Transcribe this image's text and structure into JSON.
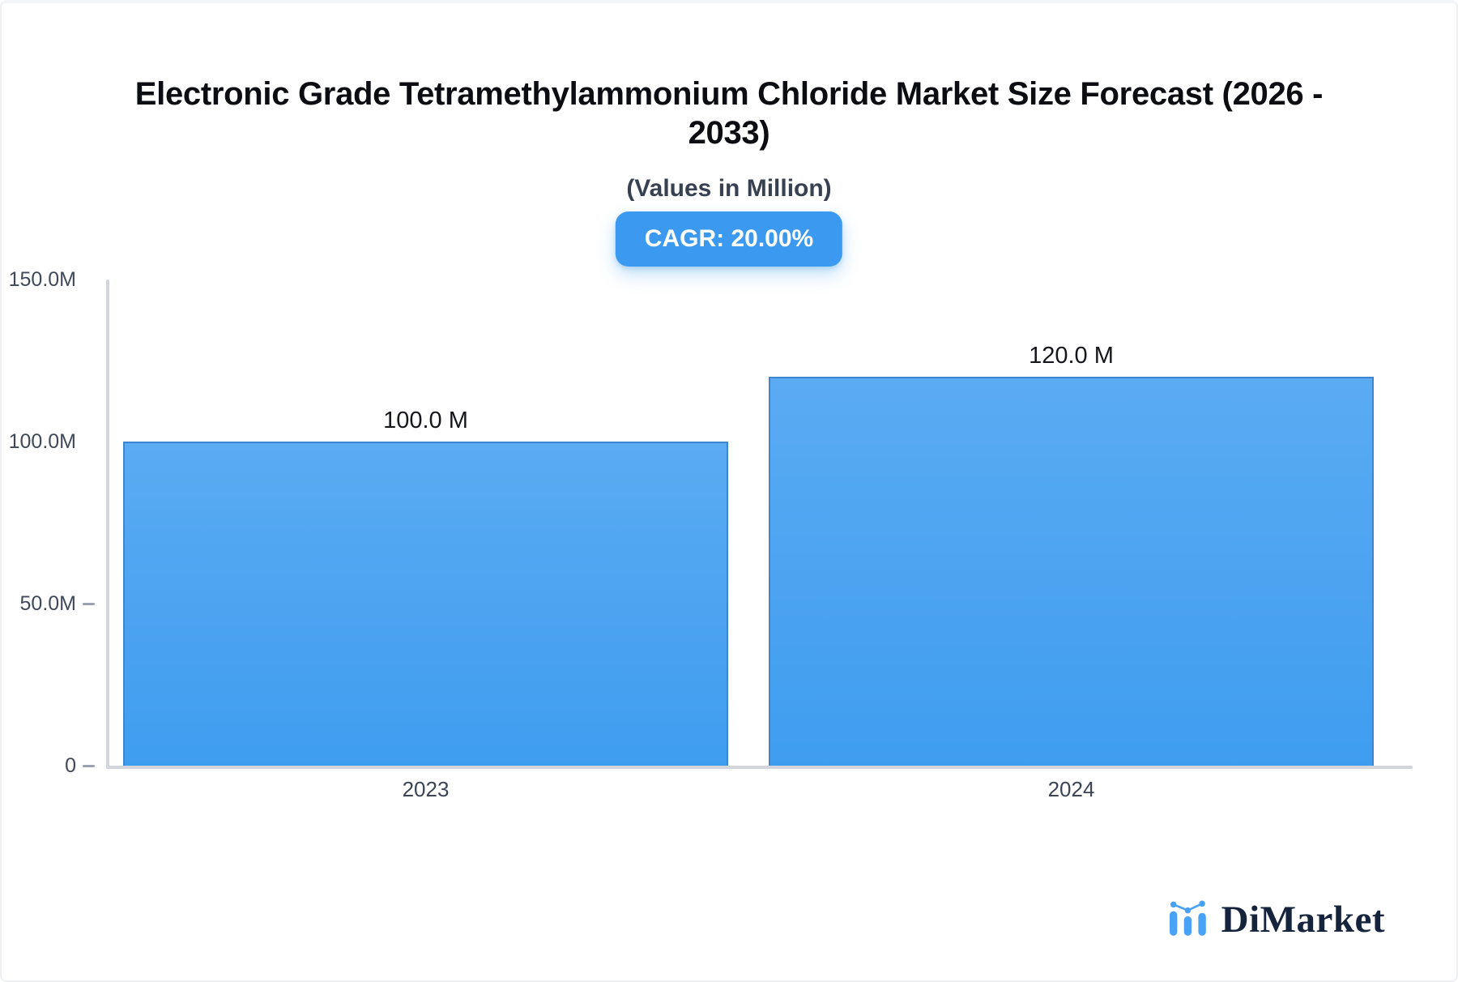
{
  "chart_data": {
    "type": "bar",
    "title": "Electronic Grade Tetramethylammonium Chloride Market Size Forecast (2026 - 2033)",
    "title_lines": [
      "Electronic Grade Tetramethylammonium Chloride Market Size Forecast (2026 -",
      "2033)"
    ],
    "subtitle": "(Values in Million)",
    "cagr_badge": "CAGR: 20.00%",
    "categories": [
      "2023",
      "2024"
    ],
    "values": [
      100.0,
      120.0
    ],
    "value_labels": [
      "100.0 M",
      "120.0 M"
    ],
    "unit": "Million",
    "ylabel": "",
    "xlabel": "",
    "ylim": [
      0,
      150
    ],
    "yticks": [
      {
        "value": 150,
        "label": "150.0M",
        "has_dash": false
      },
      {
        "value": 100,
        "label": "100.0M",
        "has_dash": false
      },
      {
        "value": 50,
        "label": "50.0M",
        "has_dash": true
      },
      {
        "value": 0,
        "label": "0",
        "has_dash": true
      }
    ],
    "grid": false,
    "legend": "none"
  },
  "branding": {
    "logo_text": "DiMarket",
    "logo_icon": "bar-line-chart-icon"
  },
  "colors": {
    "bar_fill_top": "#5aabf2",
    "bar_fill_bottom": "#3f9df0",
    "bar_border": "#3e87d0",
    "badge_bg": "#3b9af0",
    "badge_text": "#ffffff",
    "axis_line": "#d2d5dc",
    "tick_label": "#40495a",
    "title_color": "#0c0d12",
    "subtitle_color": "#374151",
    "logo_text_color": "#16233c",
    "logo_icon_color": "#4aa2f7"
  }
}
